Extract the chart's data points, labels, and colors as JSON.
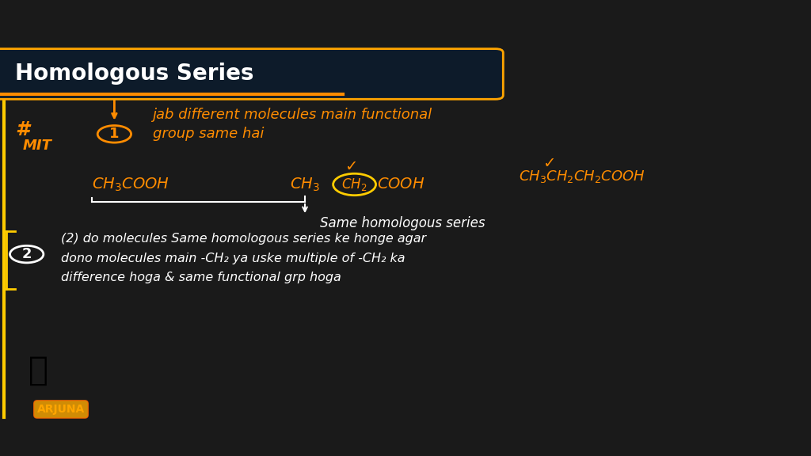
{
  "title": "Homologous Series",
  "bg_color": "#0a2a4a",
  "title_bg": "#1a1a2e",
  "title_color": "#ffffff",
  "title_border": "#ffa500",
  "orange_color": "#ff8c00",
  "white_color": "#ffffff",
  "yellow_color": "#ffff00",
  "line1": "# (1) jab different molecules main functional",
  "line2": "    group same hai",
  "chem1": "CH₃COOH",
  "chem2": "CH₃CH₂COOH",
  "chem3": "CH₃CH₂CH₂COOH",
  "same_label": "Same homologous series",
  "point2_line1": "(2) do molecules Same homologous series ke honge agar",
  "point2_line2": "dono molecules main -CH₂ ya uske multiple of -CH₂ ka",
  "point2_line3": "difference hoga & same functional grp hoga"
}
